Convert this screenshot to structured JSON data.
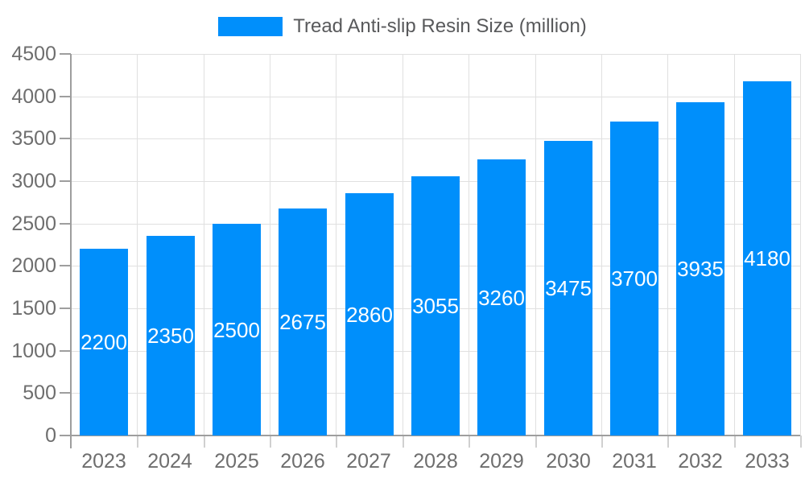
{
  "chart_data": {
    "type": "bar",
    "title": "",
    "legend": "Tread Anti-slip Resin Size (million)",
    "legend_position": "top",
    "categories": [
      "2023",
      "2024",
      "2025",
      "2026",
      "2027",
      "2028",
      "2029",
      "2030",
      "2031",
      "2032",
      "2033"
    ],
    "values": [
      2200,
      2350,
      2500,
      2675,
      2860,
      3055,
      3260,
      3475,
      3700,
      3935,
      4180
    ],
    "bar_labels": [
      "2200",
      "2350",
      "2500",
      "2675",
      "2860",
      "3055",
      "3260",
      "3475",
      "3700",
      "3935",
      "4180"
    ],
    "xlabel": "",
    "ylabel": "",
    "ylim": [
      0,
      4500
    ],
    "ytick_step": 500,
    "grid": true,
    "colors": {
      "bar": "#008FFB",
      "grid": "#e0e0e0",
      "axis": "#9e9e9e",
      "category_tick": "#d0d0d0",
      "axis_label": "#6e6e6e",
      "bar_label": "#ffffff",
      "legend_text": "#58595b"
    }
  }
}
